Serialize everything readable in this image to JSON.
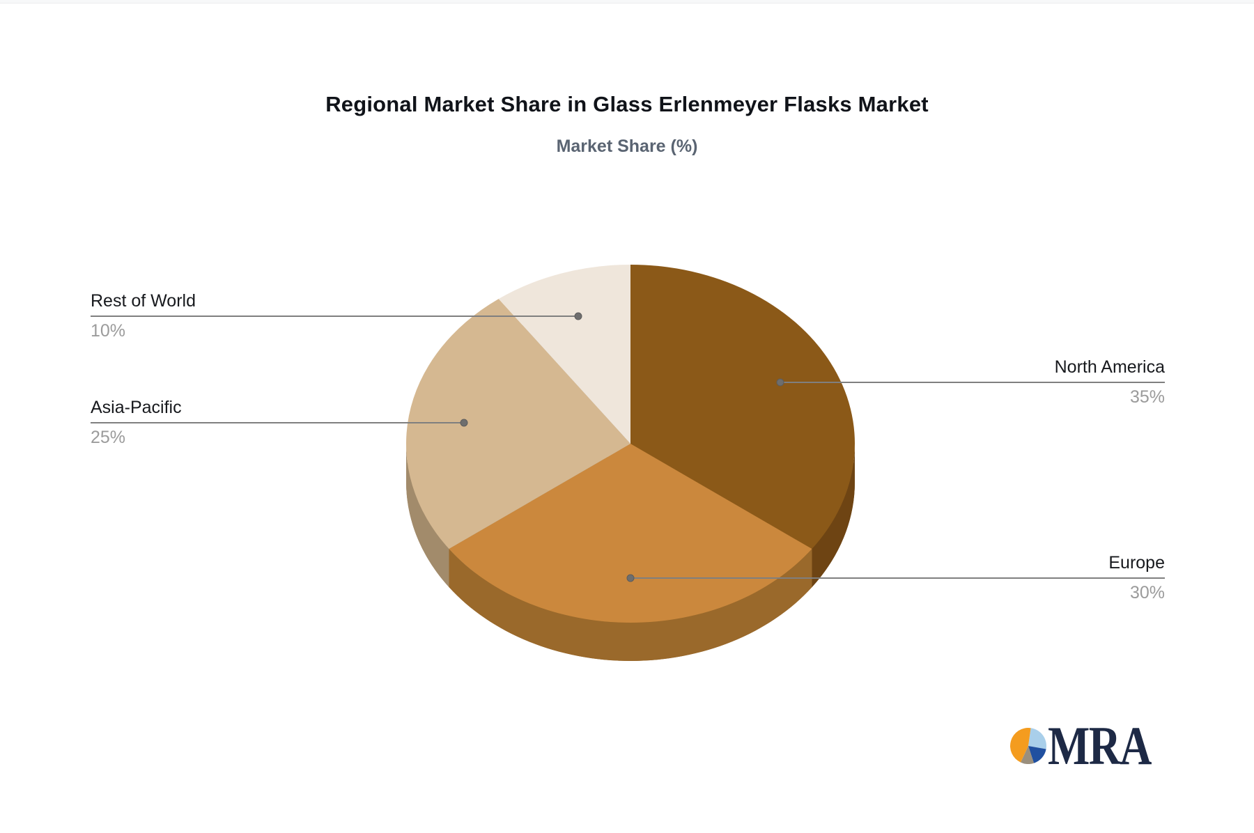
{
  "header": {
    "title": "Regional Market Share in Glass Erlenmeyer Flasks Market",
    "subtitle": "Market Share (%)",
    "title_color": "#101319",
    "subtitle_color": "#5a6472"
  },
  "chart_data": {
    "type": "pie",
    "style": "3d-pie",
    "title": "Regional Market Share in Glass Erlenmeyer Flasks Market",
    "subtitle": "Market Share (%)",
    "unit": "%",
    "start_angle": "12-o-clock",
    "direction": "clockwise",
    "legend": "none",
    "slices": [
      {
        "label": "North America",
        "value": 35,
        "display": "35%",
        "color": "#8B5918",
        "side_color": "#6E4413",
        "callout_side": "right"
      },
      {
        "label": "Europe",
        "value": 30,
        "display": "30%",
        "color": "#CB883D",
        "side_color": "#9A692B",
        "callout_side": "right"
      },
      {
        "label": "Asia-Pacific",
        "value": 25,
        "display": "25%",
        "color": "#D5B891",
        "side_color": "#A28B6B",
        "callout_side": "left"
      },
      {
        "label": "Rest of World",
        "value": 10,
        "display": "10%",
        "color": "#EFE6DB",
        "side_color": "#BFB6AA",
        "callout_side": "left"
      }
    ],
    "callout_style": {
      "line_color": "#7f7f7f",
      "dot_color": "#6e6e6e",
      "label_color": "#17191d",
      "value_color": "#9b9b9b"
    }
  },
  "logo": {
    "brand_text": "MRA",
    "text_color": "#1D2945",
    "icon_name": "pie-chart-logo-icon",
    "icon_slices": [
      {
        "name": "light-blue-slice",
        "color": "#A9CFEA",
        "start": 8,
        "end": 100
      },
      {
        "name": "dark-blue-slice",
        "color": "#2050A0",
        "start": 100,
        "end": 162
      },
      {
        "name": "gray-slice",
        "color": "#9A8F7D",
        "start": 162,
        "end": 205
      },
      {
        "name": "orange-slice",
        "color": "#F49C1F",
        "start": 205,
        "end": 368
      }
    ]
  }
}
